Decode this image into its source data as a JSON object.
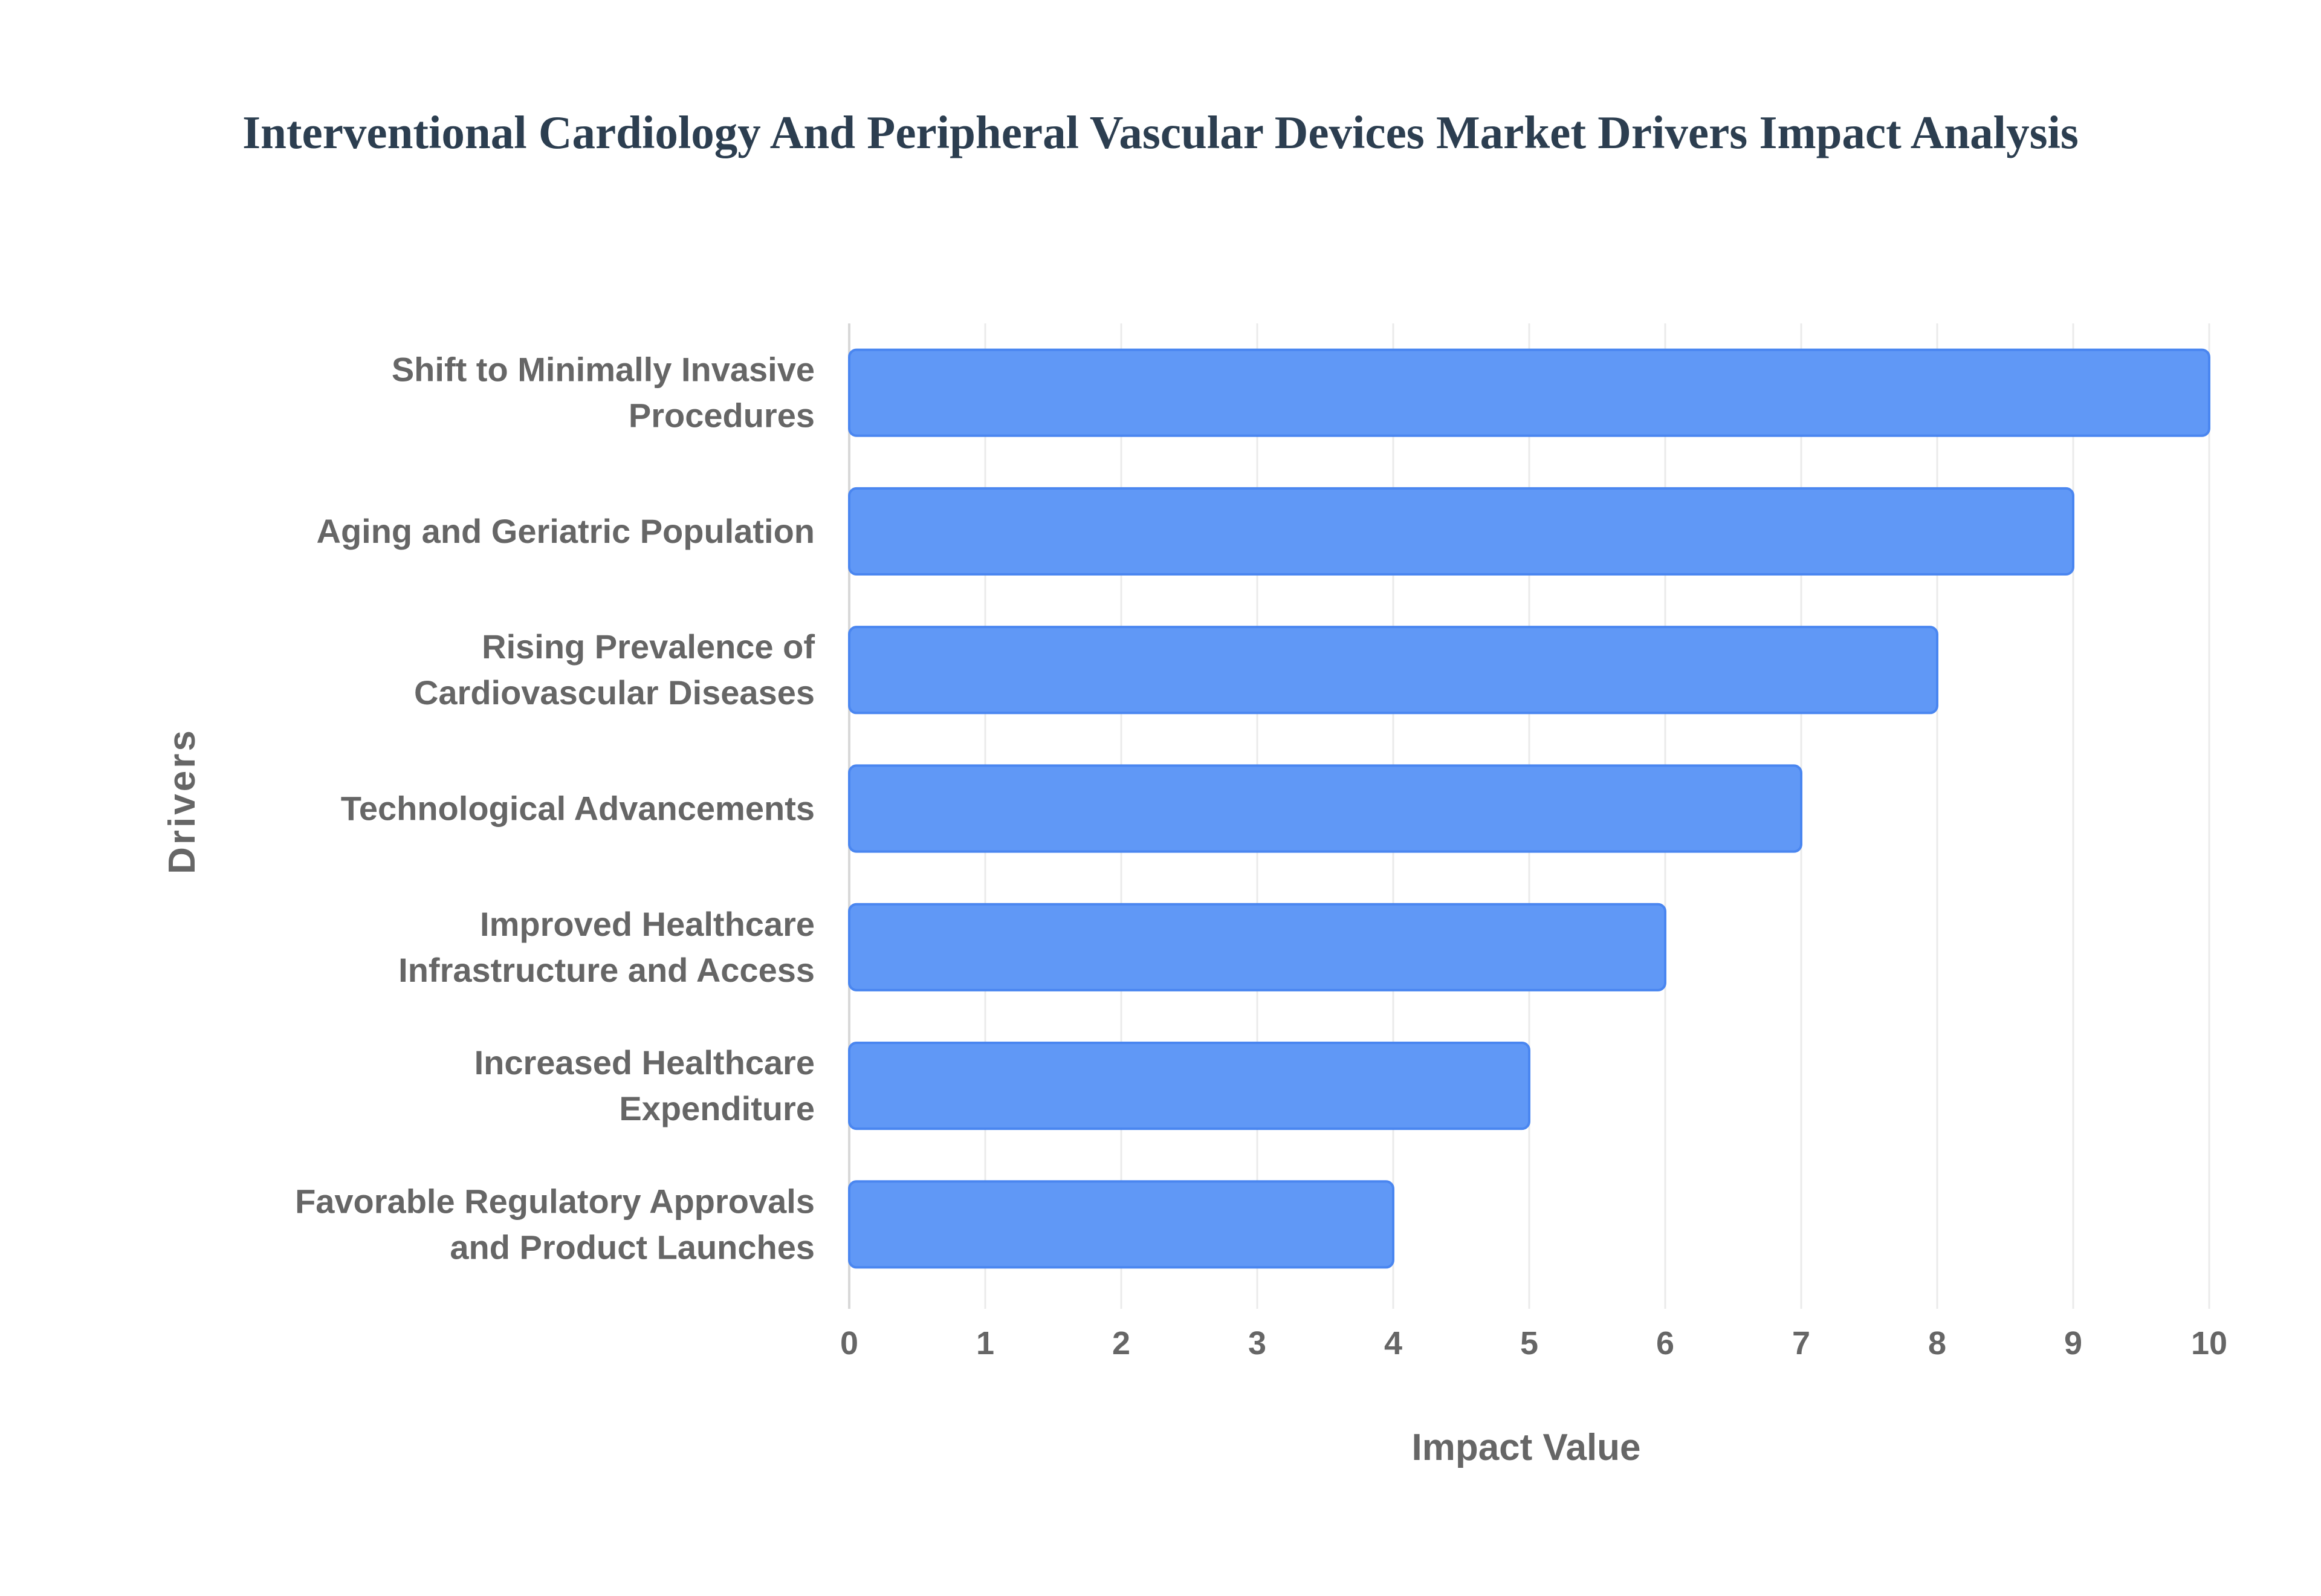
{
  "chart_data": {
    "type": "bar",
    "orientation": "horizontal",
    "title": "Interventional Cardiology And Peripheral Vascular Devices Market Drivers Impact Analysis",
    "xlabel": "Impact Value",
    "ylabel": "Drivers",
    "xlim": [
      0,
      10
    ],
    "x_ticks": [
      "0",
      "1",
      "2",
      "3",
      "4",
      "5",
      "6",
      "7",
      "8",
      "9",
      "10"
    ],
    "grid": true,
    "bar_color": "#6098F6",
    "categories": [
      [
        "Shift to Minimally Invasive",
        "Procedures"
      ],
      [
        "Aging and Geriatric Population"
      ],
      [
        "Rising Prevalence of",
        "Cardiovascular Diseases"
      ],
      [
        "Technological Advancements"
      ],
      [
        "Improved Healthcare",
        "Infrastructure and Access"
      ],
      [
        "Increased Healthcare",
        "Expenditure"
      ],
      [
        "Favorable Regulatory Approvals",
        "and Product Launches"
      ]
    ],
    "values": [
      10,
      9,
      8,
      7,
      6,
      5,
      4
    ]
  }
}
